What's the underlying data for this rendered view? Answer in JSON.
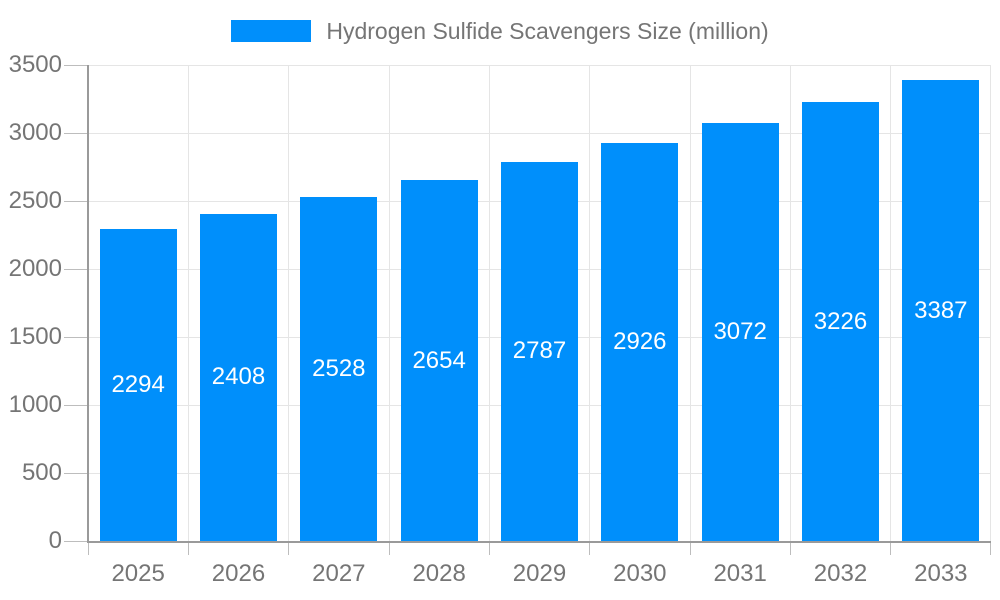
{
  "legend": {
    "position": "top",
    "swatch_color": "#008FFB",
    "label": "Hydrogen Sulfide Scavengers Size (million)"
  },
  "chart_data": {
    "type": "bar",
    "title": "Hydrogen Sulfide Scavengers Size (million)",
    "series_name": "Hydrogen Sulfide Scavengers Size (million)",
    "categories": [
      "2025",
      "2026",
      "2027",
      "2028",
      "2029",
      "2030",
      "2031",
      "2032",
      "2033"
    ],
    "values": [
      2294,
      2408,
      2528,
      2654,
      2787,
      2926,
      3072,
      3226,
      3387
    ],
    "xlabel": "",
    "ylabel": "",
    "ylim": [
      0,
      3500
    ],
    "yticks": [
      0,
      500,
      1000,
      1500,
      2000,
      2500,
      3000,
      3500
    ],
    "grid": true,
    "legend_position": "top",
    "data_labels": "centered-white",
    "colors": {
      "bar": "#008FFB",
      "value_label": "#ffffff",
      "axis_text": "#757575",
      "grid_line": "#e5e5e5",
      "axis_line": "#9a9a9a",
      "tick_line": "#bdbdbd",
      "background": "#ffffff"
    }
  }
}
